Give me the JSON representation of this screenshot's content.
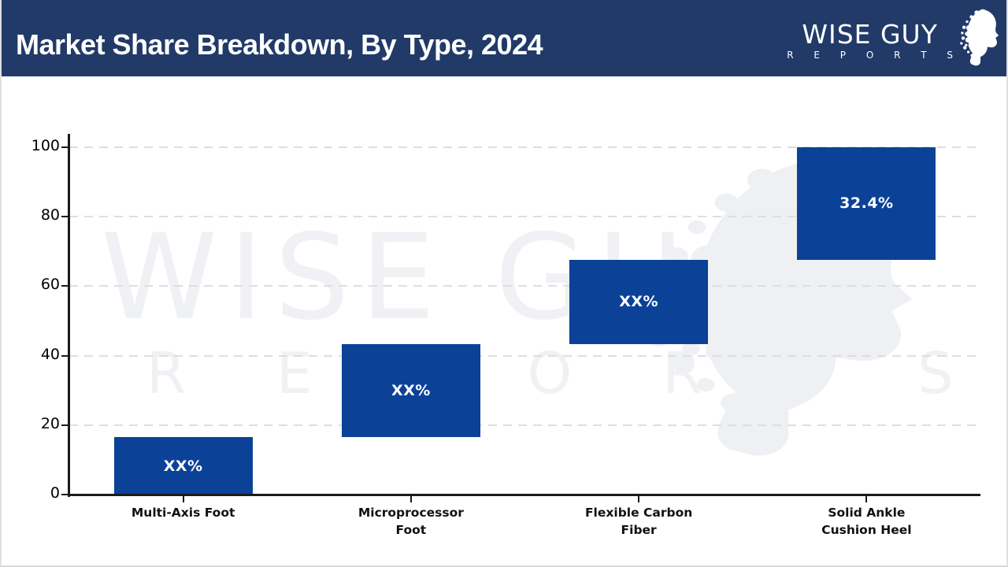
{
  "header": {
    "title": "Market Share Breakdown, By Type, 2024",
    "bg_color": "#223A68",
    "logo": {
      "line1": "WISE GUY",
      "line2": "R E P O R T S"
    }
  },
  "watermark": {
    "line1": "WISE GU",
    "line2": "R E P O R T S"
  },
  "chart_data": {
    "type": "bar",
    "subtype": "floating-waterfall-segments",
    "title": "Market Share Breakdown, By Type, 2024",
    "categories": [
      "Multi-Axis Foot",
      "Microprocessor Foot",
      "Flexible Carbon Fiber",
      "Solid Ankle Cushion Heel"
    ],
    "category_lines": [
      [
        "Multi-Axis Foot"
      ],
      [
        "Microprocessor",
        "Foot"
      ],
      [
        "Flexible Carbon",
        "Fiber"
      ],
      [
        "Solid Ankle",
        "Cushion Heel"
      ]
    ],
    "bars": [
      {
        "category": "Multi-Axis Foot",
        "start": 0,
        "end": 16.5,
        "label": "XX%"
      },
      {
        "category": "Microprocessor Foot",
        "start": 16.5,
        "end": 43.4,
        "label": "XX%"
      },
      {
        "category": "Flexible Carbon Fiber",
        "start": 43.4,
        "end": 67.6,
        "label": "XX%"
      },
      {
        "category": "Solid Ankle Cushion Heel",
        "start": 67.6,
        "end": 100,
        "label": "32.4%"
      }
    ],
    "yticks": [
      0,
      20,
      40,
      60,
      80,
      100
    ],
    "ylim": [
      0,
      104
    ],
    "xlabel": "",
    "ylabel": "",
    "grid": "horizontal-dashed",
    "legend": "none",
    "bar_color": "#0B4298",
    "bar_label_color": "#FFFFFF",
    "axis_color": "#1a1a1a",
    "grid_color": "#dedede"
  }
}
